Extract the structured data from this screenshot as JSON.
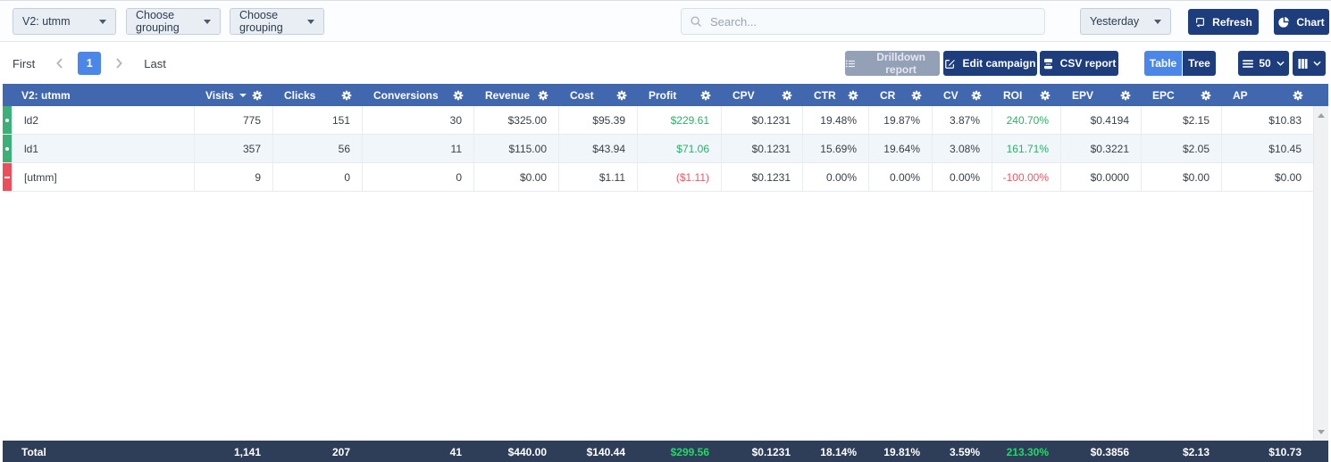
{
  "toolbar": {
    "variable_dropdown": {
      "value": "V2: utmm"
    },
    "grouping_dropdowns": [
      {
        "value": "Choose grouping"
      },
      {
        "value": "Choose grouping"
      }
    ],
    "search": {
      "placeholder": "Search..."
    },
    "date_range_dropdown": {
      "value": "Yesterday"
    },
    "refresh_label": "Refresh",
    "chart_label": "Chart"
  },
  "pagination": {
    "first_label": "First",
    "current_page": "1",
    "last_label": "Last"
  },
  "actions": {
    "drilldown_label": "Drilldown report",
    "edit_campaign_label": "Edit campaign",
    "csv_label": "CSV report",
    "table_label": "Table",
    "tree_label": "Tree",
    "rows_per_page": "50"
  },
  "table": {
    "columns": [
      {
        "label": "V2: utmm",
        "type": "name"
      },
      {
        "label": "Visits",
        "sorted": true
      },
      {
        "label": "Clicks"
      },
      {
        "label": "Conversions"
      },
      {
        "label": "Revenue"
      },
      {
        "label": "Cost"
      },
      {
        "label": "Profit"
      },
      {
        "label": "CPV"
      },
      {
        "label": "CTR"
      },
      {
        "label": "CR"
      },
      {
        "label": "CV"
      },
      {
        "label": "ROI"
      },
      {
        "label": "EPV"
      },
      {
        "label": "EPC"
      },
      {
        "label": "AP"
      }
    ],
    "rows": [
      {
        "indicator": "positive",
        "name": "ld2",
        "values": [
          "775",
          "151",
          "30",
          "$325.00",
          "$95.39",
          "$229.61",
          "$0.1231",
          "19.48%",
          "19.87%",
          "3.87%",
          "240.70%",
          "$0.4194",
          "$2.15",
          "$10.83"
        ],
        "highlight": {
          "5": "pos",
          "10": "pos"
        }
      },
      {
        "indicator": "positive",
        "name": "ld1",
        "values": [
          "357",
          "56",
          "11",
          "$115.00",
          "$43.94",
          "$71.06",
          "$0.1231",
          "15.69%",
          "19.64%",
          "3.08%",
          "161.71%",
          "$0.3221",
          "$2.05",
          "$10.45"
        ],
        "highlight": {
          "5": "pos",
          "10": "pos"
        }
      },
      {
        "indicator": "negative",
        "name": "[utmm]",
        "values": [
          "9",
          "0",
          "0",
          "$0.00",
          "$1.11",
          "($1.11)",
          "$0.1231",
          "0.00%",
          "0.00%",
          "0.00%",
          "-100.00%",
          "$0.0000",
          "$0.00",
          "$0.00"
        ],
        "highlight": {
          "5": "neg",
          "10": "neg"
        }
      }
    ],
    "total": {
      "label": "Total",
      "values": [
        "1,141",
        "207",
        "41",
        "$440.00",
        "$140.44",
        "$299.56",
        "$0.1231",
        "18.14%",
        "19.81%",
        "3.59%",
        "213.30%",
        "$0.3856",
        "$2.13",
        "$10.73"
      ],
      "highlight": {
        "5": "pos",
        "10": "pos"
      }
    }
  },
  "colors": {
    "header_blue": "#4168ae",
    "navy_button": "#1e3d7c",
    "active_blue": "#4a87e8",
    "total_bg": "#2f3e58",
    "positive_green": "#2eaf6a",
    "negative_red": "#ee5865",
    "total_green": "#20d967",
    "indicator_green": "#3cb077",
    "indicator_red": "#ea4f5b"
  }
}
